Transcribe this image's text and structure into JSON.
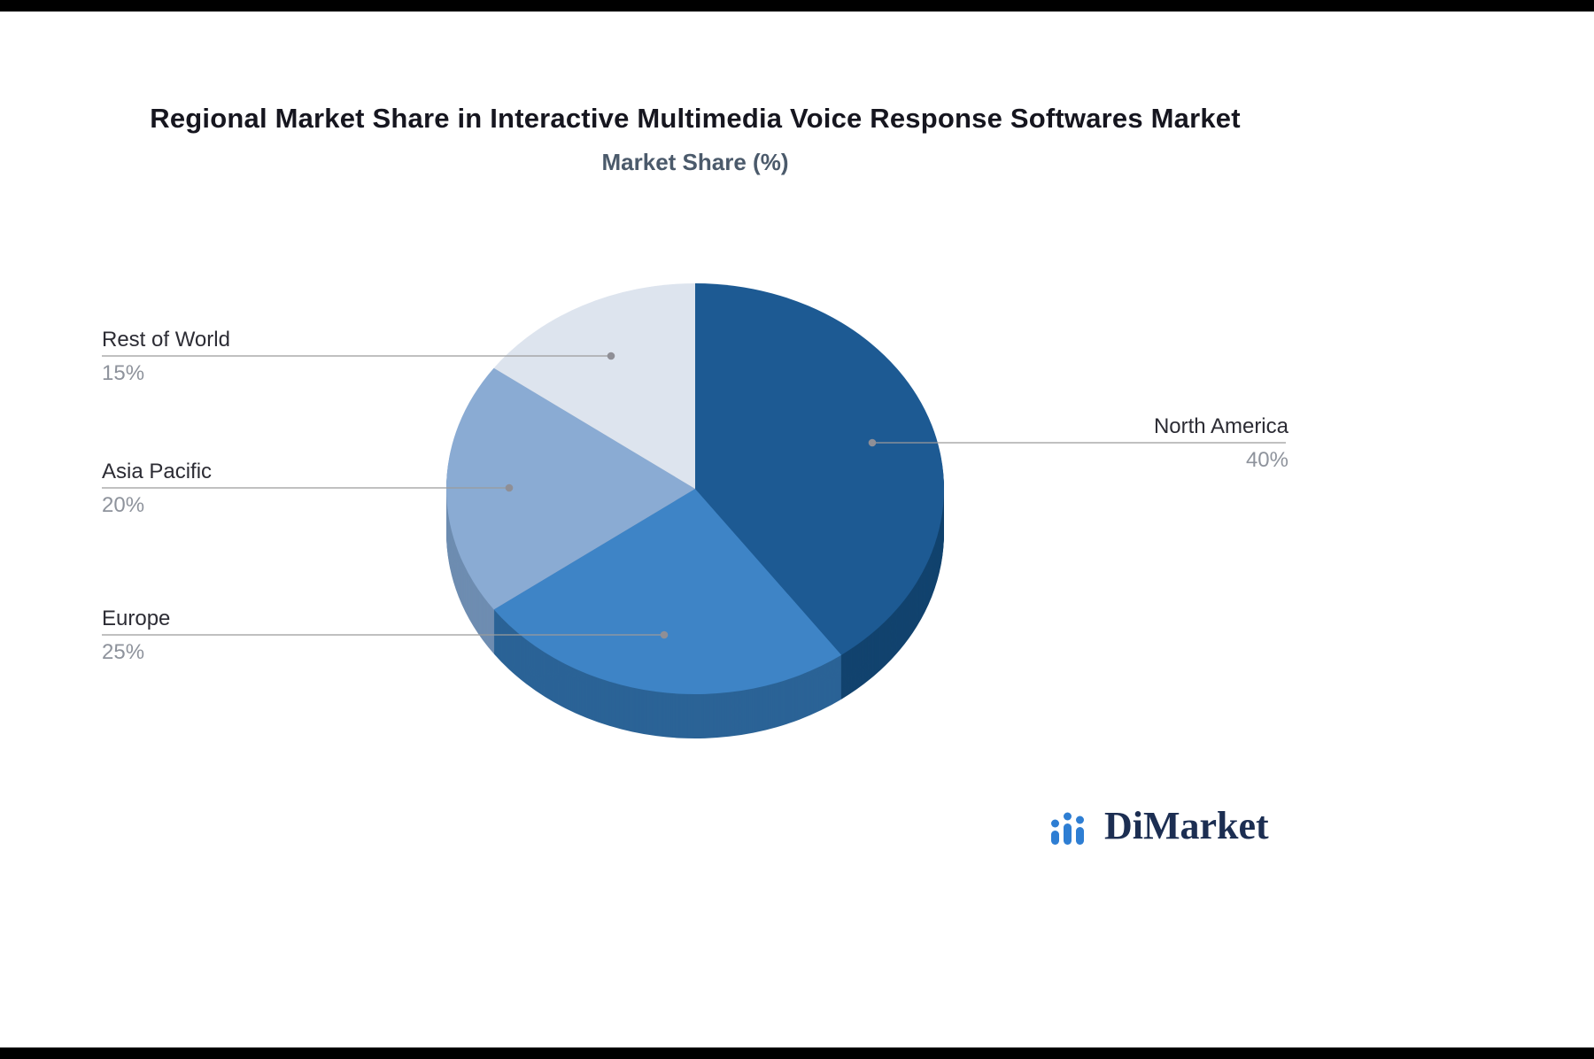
{
  "page": {
    "title": "Regional Market Share in Interactive Multimedia Voice Response Softwares Market",
    "subtitle": "Market Share (%)"
  },
  "branding": {
    "logo_text": "DiMarket",
    "logo_text_color": "#1c2e52",
    "logo_icon_color": "#2e7ed3"
  },
  "chart_data": {
    "type": "pie",
    "style": "3d-pie-with-callout-labels",
    "title": "Regional Market Share in Interactive Multimedia Voice Response Softwares Market",
    "subtitle": "Market Share (%)",
    "unit": "%",
    "start_angle_deg": 0,
    "direction": "clockwise",
    "legend_position": "callout-labels",
    "slices": [
      {
        "label": "North America",
        "value": 40,
        "display": "40%",
        "color": "#1d5a93",
        "side_color": "#12436e"
      },
      {
        "label": "Europe",
        "value": 25,
        "display": "25%",
        "color": "#3e84c6",
        "side_color": "#2b6396"
      },
      {
        "label": "Asia Pacific",
        "value": 20,
        "display": "20%",
        "color": "#8aabd3",
        "side_color": "#6e8db1"
      },
      {
        "label": "Rest of World",
        "value": 15,
        "display": "15%",
        "color": "#dde4ee",
        "side_color": "#b9c3d2"
      }
    ]
  }
}
